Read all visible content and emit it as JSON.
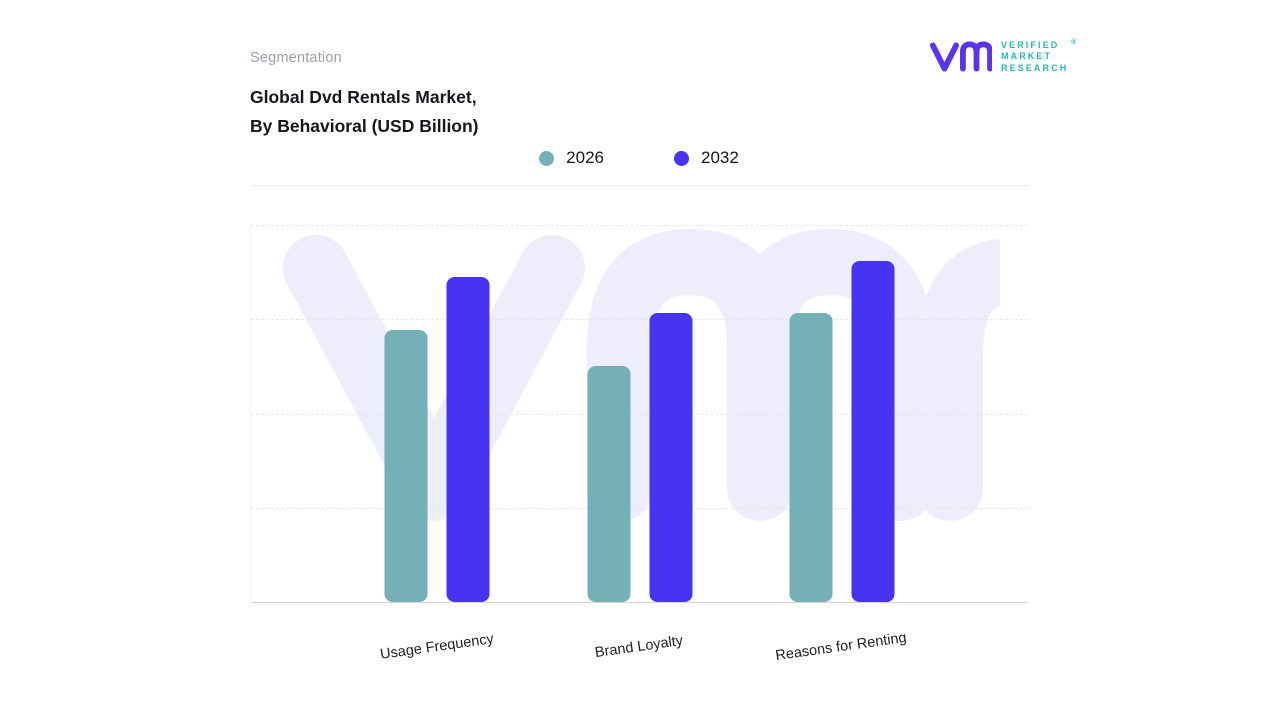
{
  "header": {
    "eyebrow": "Segmentation",
    "title_line1": "Global Dvd Rentals Market,",
    "title_line2": "By Behavioral (USD Billion)"
  },
  "logo": {
    "text_line1": "VERIFIED",
    "text_line2": "MARKET",
    "text_line3": "RESEARCH",
    "registered_mark": "®",
    "monogram_color": "#5b33ee",
    "text_color": "#2cb4b8"
  },
  "watermark": "vm-monogram",
  "chart_data": {
    "type": "bar",
    "title": "Global Dvd Rentals Market, By Behavioral (USD Billion)",
    "categories": [
      "Usage Frequency",
      "Brand Loyalty",
      "Reasons for Renting"
    ],
    "series": [
      {
        "name": "2026",
        "color": "#74b0b5",
        "values": [
          6.7,
          5.8,
          7.1
        ]
      },
      {
        "name": "2032",
        "color": "#4733f2",
        "values": [
          8.0,
          7.1,
          8.4
        ]
      }
    ],
    "ylim": [
      0,
      9.3
    ],
    "xlabel": "",
    "ylabel": "USD Billion",
    "grid": "dashed-horizontal",
    "legend_position": "top-center",
    "group_centers_pct": [
      24,
      50,
      76
    ]
  }
}
